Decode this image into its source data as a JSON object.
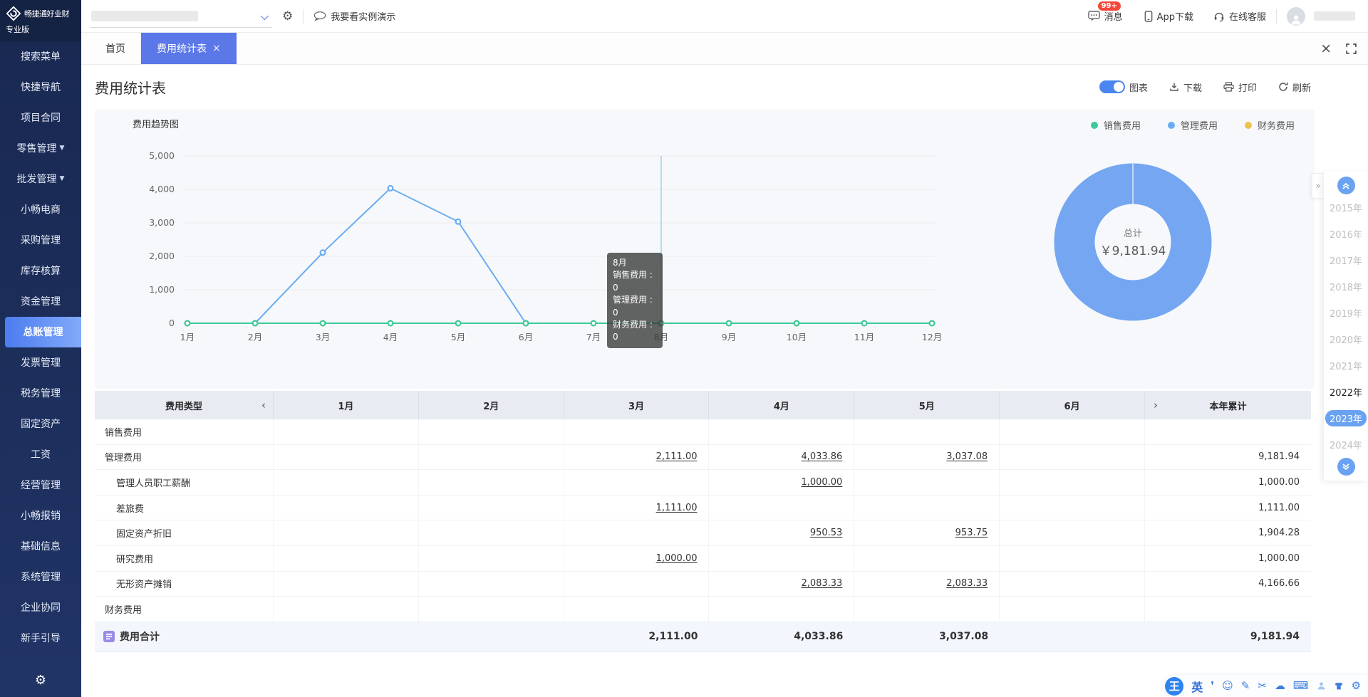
{
  "topbar": {
    "brand_name": "畅捷通好业财",
    "brand_edition": "专业版",
    "demo_label": "我要看实例演示",
    "messages_label": "消息",
    "messages_badge": "99+",
    "app_download_label": "App下载",
    "online_service_label": "在线客服"
  },
  "tabs": {
    "items": [
      {
        "label": "首页",
        "active": false,
        "closable": false
      },
      {
        "label": "费用统计表",
        "active": true,
        "closable": true
      }
    ]
  },
  "sidebar": {
    "items": [
      {
        "label": "搜索菜单"
      },
      {
        "label": "快捷导航"
      },
      {
        "label": "项目合同"
      },
      {
        "label": "零售管理",
        "arrow": true
      },
      {
        "label": "批发管理",
        "arrow": true
      },
      {
        "label": "小畅电商"
      },
      {
        "label": "采购管理"
      },
      {
        "label": "库存核算"
      },
      {
        "label": "资金管理"
      },
      {
        "label": "总账管理",
        "active": true
      },
      {
        "label": "发票管理"
      },
      {
        "label": "税务管理"
      },
      {
        "label": "固定资产"
      },
      {
        "label": "工资"
      },
      {
        "label": "经营管理"
      },
      {
        "label": "小畅报销"
      },
      {
        "label": "基础信息"
      },
      {
        "label": "系统管理"
      },
      {
        "label": "企业协同"
      },
      {
        "label": "新手引导"
      }
    ]
  },
  "page": {
    "title": "费用统计表",
    "chart_toggle_label": "图表",
    "download_label": "下载",
    "print_label": "打印",
    "refresh_label": "刷新"
  },
  "chart_data": [
    {
      "type": "line",
      "title": "费用趋势图",
      "x": [
        "1月",
        "2月",
        "3月",
        "4月",
        "5月",
        "6月",
        "7月",
        "8月",
        "9月",
        "10月",
        "11月",
        "12月"
      ],
      "ylim": [
        0,
        5000
      ],
      "yticks": [
        0,
        1000,
        2000,
        3000,
        4000,
        5000
      ],
      "grid": true,
      "legend_position": "top-right",
      "series": [
        {
          "name": "销售费用",
          "color": "#3ec999",
          "values": [
            0,
            0,
            0,
            0,
            0,
            0,
            0,
            0,
            0,
            0,
            0,
            0
          ]
        },
        {
          "name": "管理费用",
          "color": "#68acf2",
          "values": [
            null,
            0,
            2111,
            4033.86,
            3037.08,
            0,
            null,
            null,
            null,
            null,
            null,
            null
          ]
        },
        {
          "name": "财务费用",
          "color": "#edc24d",
          "values": [
            0,
            0,
            0,
            0,
            0,
            0,
            0,
            0,
            0,
            0,
            0,
            0
          ]
        }
      ],
      "tooltip": {
        "title": "8月",
        "x_index": 7,
        "lines": [
          "销售费用 : 0",
          "管理费用 : 0",
          "财务费用 : 0"
        ]
      }
    },
    {
      "type": "pie",
      "center_label": "总计",
      "center_value": "￥9,181.94",
      "slices": [
        {
          "name": "管理费用",
          "value": 9181.94,
          "color": "#74a6f1"
        }
      ]
    }
  ],
  "year_panel": {
    "years": [
      "2015年",
      "2016年",
      "2017年",
      "2018年",
      "2019年",
      "2020年",
      "2021年",
      "2022年",
      "2023年",
      "2024年"
    ],
    "selected": "2023年",
    "emphasized": "2022年"
  },
  "table": {
    "col_group_label": "费用类型",
    "months": [
      "1月",
      "2月",
      "3月",
      "4月",
      "5月",
      "6月"
    ],
    "total_col": "本年累计",
    "rows": [
      {
        "label": "销售费用",
        "indent": 0,
        "cells": [
          "",
          "",
          "",
          "",
          "",
          ""
        ],
        "total": ""
      },
      {
        "label": "管理费用",
        "indent": 0,
        "cells": [
          "",
          "",
          "2,111.00",
          "4,033.86",
          "3,037.08",
          ""
        ],
        "total": "9,181.94"
      },
      {
        "label": "管理人员职工薪酬",
        "indent": 1,
        "cells": [
          "",
          "",
          "",
          "1,000.00",
          "",
          ""
        ],
        "total": "1,000.00"
      },
      {
        "label": "差旅费",
        "indent": 1,
        "cells": [
          "",
          "",
          "1,111.00",
          "",
          "",
          ""
        ],
        "total": "1,111.00"
      },
      {
        "label": "固定资产折旧",
        "indent": 1,
        "cells": [
          "",
          "",
          "",
          "950.53",
          "953.75",
          ""
        ],
        "total": "1,904.28"
      },
      {
        "label": "研究费用",
        "indent": 1,
        "cells": [
          "",
          "",
          "1,000.00",
          "",
          "",
          ""
        ],
        "total": "1,000.00"
      },
      {
        "label": "无形资产摊销",
        "indent": 1,
        "cells": [
          "",
          "",
          "",
          "2,083.33",
          "2,083.33",
          ""
        ],
        "total": "4,166.66"
      },
      {
        "label": "财务费用",
        "indent": 0,
        "cells": [
          "",
          "",
          "",
          "",
          "",
          ""
        ],
        "total": ""
      }
    ],
    "total_row": {
      "label": "费用合计",
      "cells": [
        "",
        "",
        "2,111.00",
        "4,033.86",
        "3,037.08",
        ""
      ],
      "total": "9,181.94"
    }
  },
  "ime_bar": {
    "logo": "王",
    "mode": "英",
    "icons": [
      "comma",
      "smiley",
      "pencil",
      "scissors",
      "cloud",
      "keyboard",
      "person",
      "shirt",
      "gear"
    ]
  }
}
